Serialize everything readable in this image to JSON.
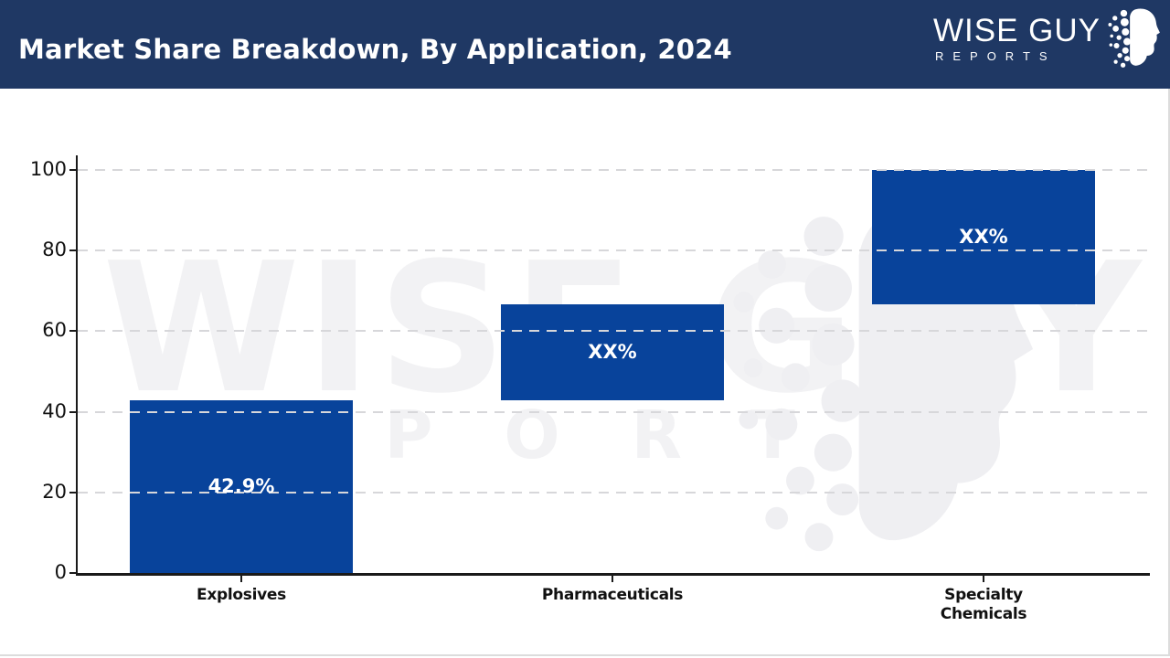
{
  "header": {
    "title": "Market Share Breakdown, By Application, 2024",
    "bg_color": "#1F3864",
    "logo": {
      "wordmark": "WISE GUY",
      "subtext": "REPORTS"
    }
  },
  "watermark": {
    "wordmark": "WISE GUY",
    "subtext": "REPORTS"
  },
  "chart_data": {
    "type": "bar",
    "subtype": "waterfall-segments",
    "title": "Market Share Breakdown, By Application, 2024",
    "categories": [
      "Explosives",
      "Pharmaceuticals",
      "Specialty Chemicals"
    ],
    "segments": [
      {
        "category": "Explosives",
        "start": 0,
        "end": 42.9,
        "label": "42.9%"
      },
      {
        "category": "Pharmaceuticals",
        "start": 42.9,
        "end": 66.7,
        "label": "XX%"
      },
      {
        "category": "Specialty Chemicals",
        "start": 66.7,
        "end": 100,
        "label": "XX%"
      }
    ],
    "y_ticks": [
      0,
      20,
      40,
      60,
      80,
      100
    ],
    "ylim": [
      0,
      105
    ],
    "xlabel": "",
    "ylabel": "",
    "grid": "horizontal-dashed",
    "legend": "none",
    "bar_color": "#08439B",
    "label_color": "#FFFFFF",
    "grid_color": "#D7D7DA",
    "axis_color": "#1A1A1A",
    "tick_label_color": "#111111"
  }
}
